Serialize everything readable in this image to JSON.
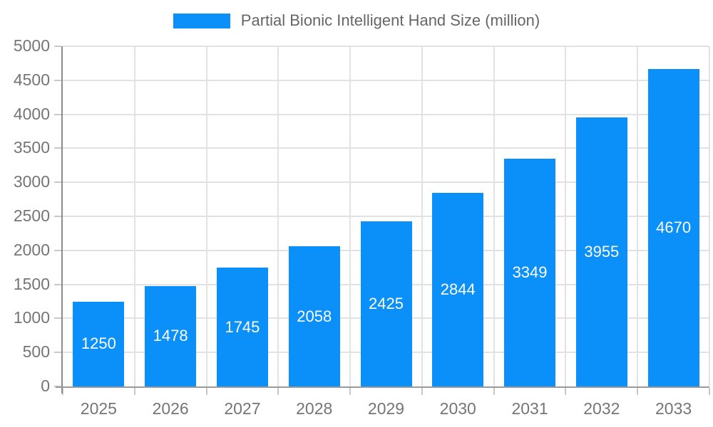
{
  "chart_data": {
    "type": "bar",
    "title": "Partial Bionic Intelligent Hand Size (million)",
    "legend": {
      "label": "Partial Bionic Intelligent Hand Size (million)",
      "position": "top"
    },
    "categories": [
      "2025",
      "2026",
      "2027",
      "2028",
      "2029",
      "2030",
      "2031",
      "2032",
      "2033"
    ],
    "series": [
      {
        "name": "Partial Bionic Intelligent Hand Size (million)",
        "values": [
          1250,
          1478,
          1745,
          2058,
          2425,
          2844,
          3349,
          3955,
          4670
        ]
      }
    ],
    "value_labels": [
      "1250",
      "1478",
      "1745",
      "2058",
      "2425",
      "2844",
      "3349",
      "3955",
      "4670"
    ],
    "xlabel": "",
    "ylabel": "",
    "ylim": [
      0,
      5000
    ],
    "ytick_step": 500,
    "ytick_labels": [
      "0",
      "500",
      "1000",
      "1500",
      "2000",
      "2500",
      "3000",
      "3500",
      "4000",
      "4500",
      "5000"
    ],
    "grid": true,
    "legend_position": "top"
  },
  "colors": {
    "bar": "#0A90F8",
    "bar_value_text": "#FFFFFF",
    "gridline": "#E2E2E2",
    "axis_line": "#8C8C8C",
    "tick": "#C9C9C9",
    "axis_text": "#757575",
    "legend_text": "#666666",
    "background": "#FFFFFF"
  }
}
